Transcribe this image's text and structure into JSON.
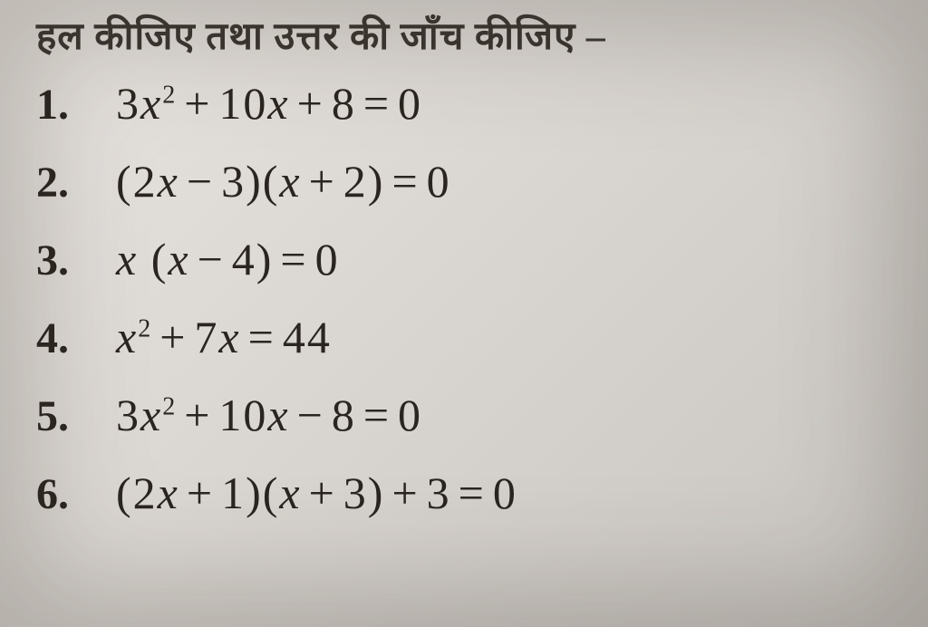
{
  "header": {
    "text": "हल कीजिए तथा उत्तर की जाँच कीजिए –"
  },
  "problems": [
    {
      "number": "1.",
      "equation_html": "<span class='num'>3</span>x<sup>2</sup><span class='op'>+</span><span class='num'>10</span>x<span class='op'>+</span><span class='num'>8</span><span class='op'>=</span><span class='num'>0</span>"
    },
    {
      "number": "2.",
      "equation_html": "<span class='num'>(2</span>x<span class='op'>−</span><span class='num'>3)</span><span class='num'>(</span>x<span class='op'>+</span><span class='num'>2)</span><span class='op'>=</span><span class='num'>0</span>"
    },
    {
      "number": "3.",
      "equation_html": "x<span class='num'> (</span>x<span class='op'>−</span><span class='num'>4)</span><span class='op'>=</span><span class='num'>0</span>"
    },
    {
      "number": "4.",
      "equation_html": "x<sup>2</sup><span class='op'>+</span><span class='num'>7</span>x<span class='op'>=</span><span class='num'>44</span>"
    },
    {
      "number": "5.",
      "equation_html": "<span class='num'>3</span>x<sup>2</sup><span class='op'>+</span><span class='num'>10</span>x<span class='op'>−</span><span class='num'>8</span><span class='op'>=</span><span class='num'>0</span>"
    },
    {
      "number": "6.",
      "equation_html": "<span class='num'>(2</span>x<span class='op'>+</span><span class='num'>1)(</span>x<span class='op'>+</span><span class='num'>3)</span><span class='op'>+</span><span class='num'>3</span><span class='op'>=</span><span class='num'>0</span>"
    }
  ],
  "style": {
    "background_gradient": [
      "#e8e4e0",
      "#d8d4d0",
      "#c8c4c0"
    ],
    "text_color": "#2a2520",
    "header_color": "#3a3530",
    "number_fontsize": 48,
    "equation_fontsize": 50,
    "header_fontsize": 42,
    "row_gap": 28
  }
}
